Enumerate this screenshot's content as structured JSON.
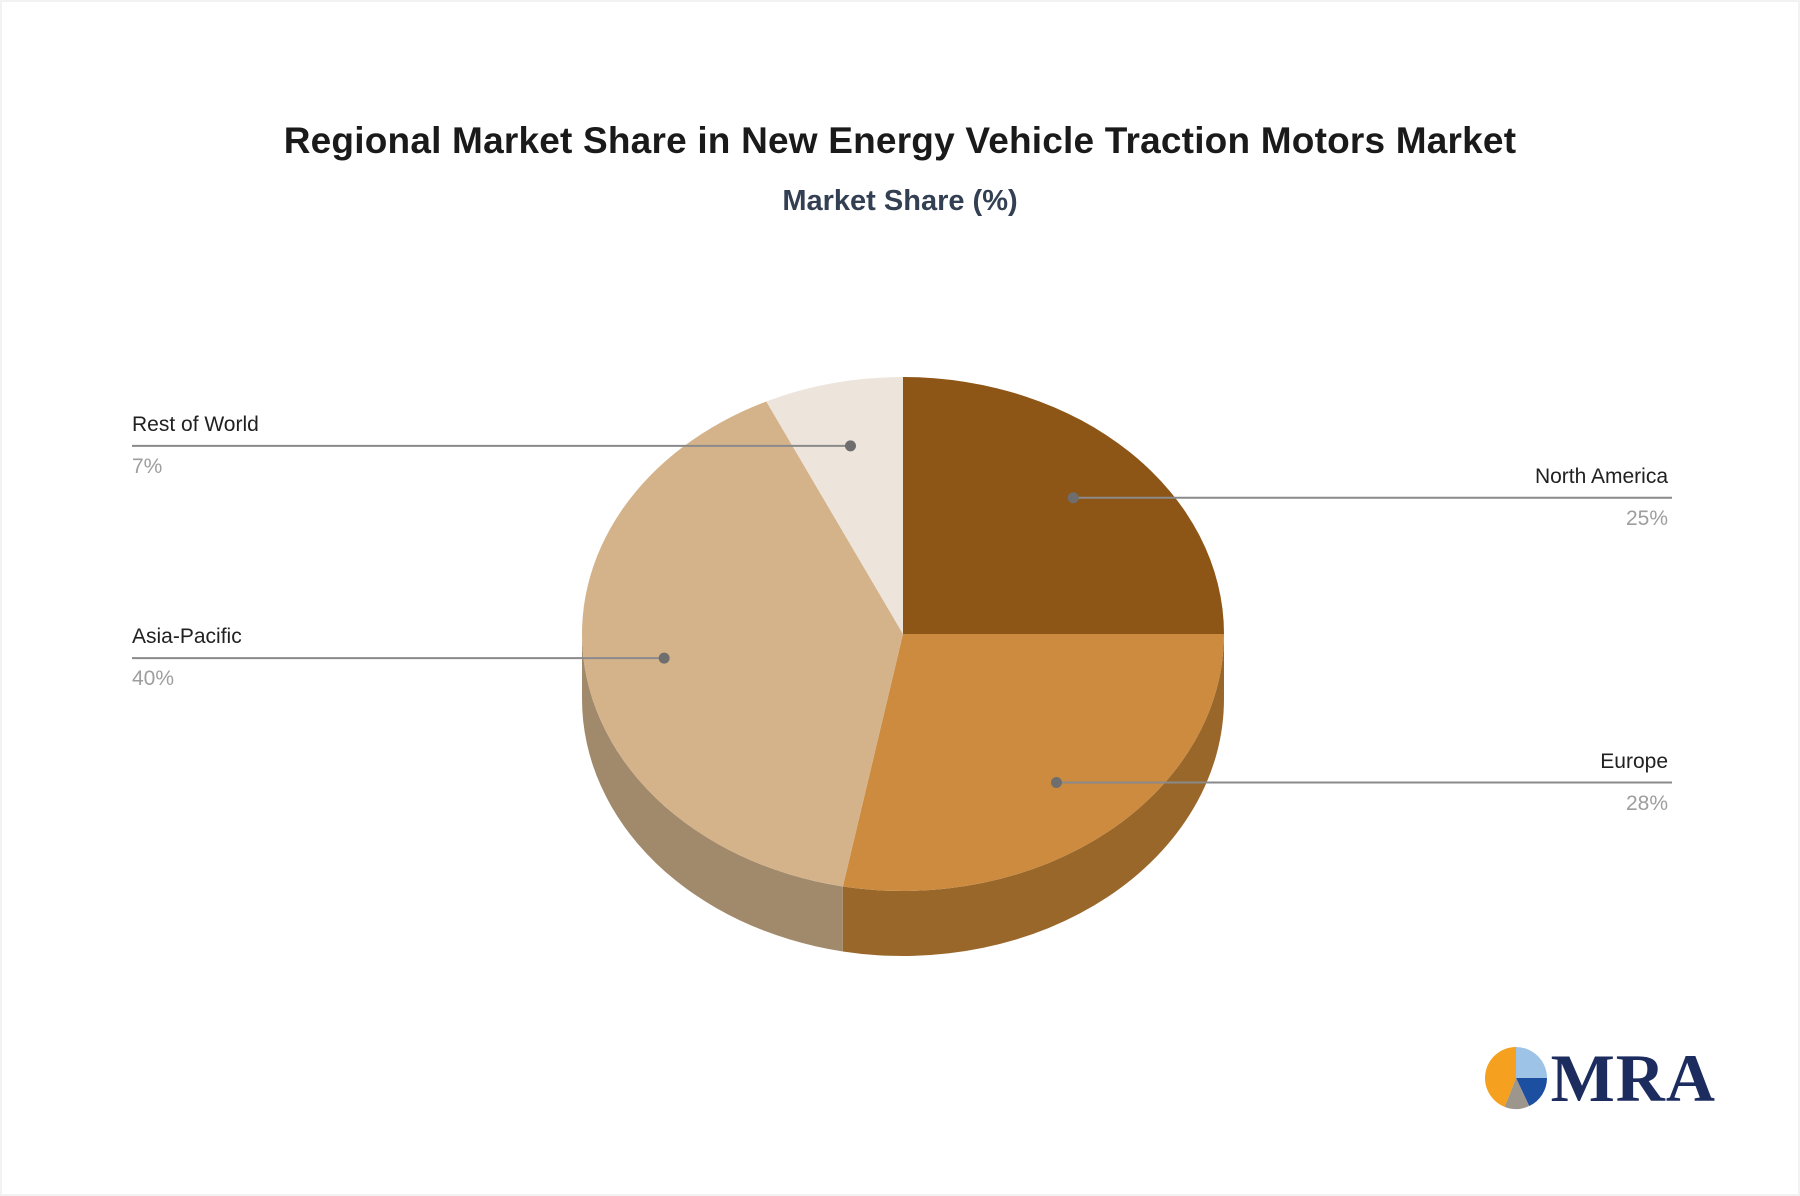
{
  "chart_data": {
    "type": "pie",
    "title": "Regional Market Share in New Energy Vehicle Traction Motors Market",
    "subtitle": "Market Share (%)",
    "unit": "%",
    "style": "3d-pie",
    "direction": "clockwise",
    "start_angle_deg": 0,
    "legend": "none",
    "labels_style": "callout-lines-with-dots",
    "slices": [
      {
        "label": "North America",
        "value": 25,
        "display_value": "25%",
        "color": "#8E5616",
        "label_side": "right"
      },
      {
        "label": "Europe",
        "value": 28,
        "display_value": "28%",
        "color": "#CD8B40",
        "side_color": "#9A672A",
        "label_side": "right"
      },
      {
        "label": "Asia-Pacific",
        "value": 40,
        "display_value": "40%",
        "color": "#D5B38A",
        "side_color": "#A18A6B",
        "label_side": "left"
      },
      {
        "label": "Rest of World",
        "value": 7,
        "display_value": "7%",
        "color": "#EDE4DB",
        "label_side": "left"
      }
    ],
    "callout": {
      "line_color": "#8a8a8a",
      "dot_color": "#6e6e6e",
      "name_color": "#212121",
      "value_color": "#9e9e9e"
    }
  },
  "logo": {
    "text": "MRA",
    "text_color": "#1c2c5f",
    "pie_icon_slices": [
      {
        "name": "light-blue",
        "value": 25,
        "color": "#9DC3E6"
      },
      {
        "name": "navy-blue",
        "value": 18,
        "color": "#1D4FA1"
      },
      {
        "name": "gray",
        "value": 13,
        "color": "#9D968C"
      },
      {
        "name": "orange",
        "value": 44,
        "color": "#F5A01E"
      }
    ]
  }
}
